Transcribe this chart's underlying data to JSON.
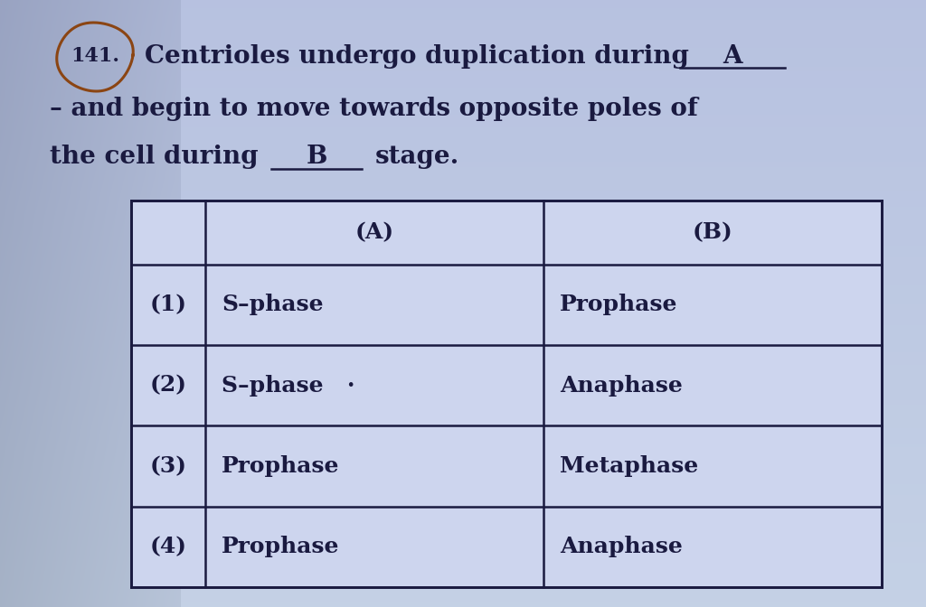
{
  "question_number": "141.",
  "col_headers": [
    "",
    "(A)",
    "(B)"
  ],
  "rows": [
    [
      "(1)",
      "S–phase",
      "Prophase"
    ],
    [
      "(2)",
      "S–phase   ·",
      "Anaphase"
    ],
    [
      "(3)",
      "Prophase",
      "Metaphase"
    ],
    [
      "(4)",
      "Prophase",
      "Anaphase"
    ]
  ],
  "bg_color_top": "#b8c4e0",
  "bg_color_mid": "#c5cfe8",
  "bg_color_bot": "#b0bedd",
  "table_bg": "#cdd5ee",
  "text_color": "#1a1a40",
  "circle_color": "#8B4513",
  "font_size_question": 20,
  "font_size_table": 18,
  "font_size_header": 18,
  "line1": "Centrioles undergo duplication during",
  "line1_A": "A",
  "line2": "– and begin to move towards opposite poles of",
  "line3_pre": "the cell during",
  "line3_B": "B",
  "line3_post": "stage."
}
